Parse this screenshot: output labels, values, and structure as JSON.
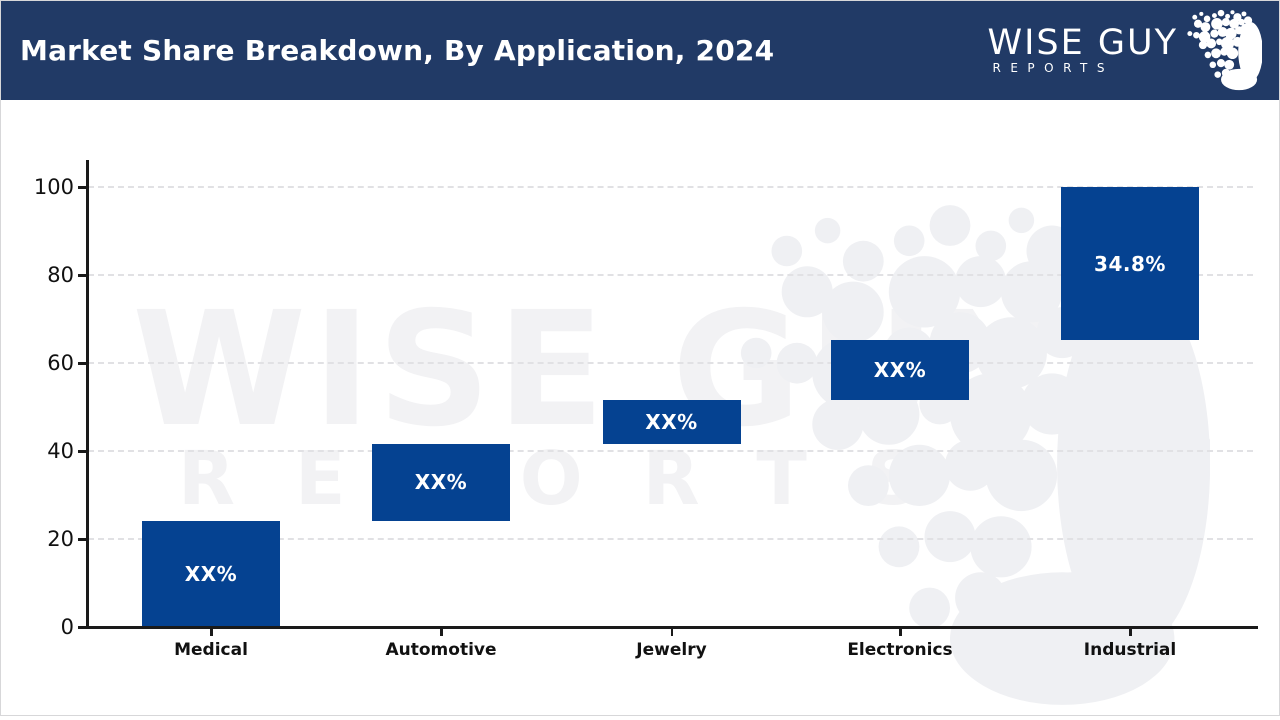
{
  "header": {
    "title": "Market Share Breakdown, By Application, 2024",
    "logo": {
      "line1": "WISE GUY",
      "line2": "REPORTS"
    }
  },
  "watermark": {
    "line1": "WISE GUY",
    "line2": "REPORTS"
  },
  "colors": {
    "header_bg": "#213a66",
    "bar_blue": "#054291",
    "bar_label": "#ffffff",
    "gridline": "#e1e1e4",
    "axis": "#1a1a1a",
    "watermark": "#f2f2f4"
  },
  "chart_data": {
    "type": "bar",
    "subtype": "waterfall",
    "title": "Market Share Breakdown, By Application, 2024",
    "xlabel": "",
    "ylabel": "",
    "categories": [
      "Medical",
      "Automotive",
      "Jewelry",
      "Electronics",
      "Industrial"
    ],
    "segments": [
      {
        "category": "Medical",
        "start": 0,
        "end": 24.2,
        "value": 24.2,
        "label": "XX%"
      },
      {
        "category": "Automotive",
        "start": 24.2,
        "end": 41.7,
        "value": 17.5,
        "label": "XX%"
      },
      {
        "category": "Jewelry",
        "start": 41.7,
        "end": 51.7,
        "value": 10.0,
        "label": "XX%"
      },
      {
        "category": "Electronics",
        "start": 51.7,
        "end": 65.2,
        "value": 13.5,
        "label": "XX%"
      },
      {
        "category": "Industrial",
        "start": 65.2,
        "end": 100,
        "value": 34.8,
        "label": "34.8%"
      }
    ],
    "yticks": [
      0,
      20,
      40,
      60,
      80,
      100
    ],
    "ylim": [
      0,
      106
    ],
    "grid": "dashed horizontal",
    "legend": "none",
    "bar_color": "#054291",
    "note": "values masked as XX% except Industrial 34.8%"
  }
}
